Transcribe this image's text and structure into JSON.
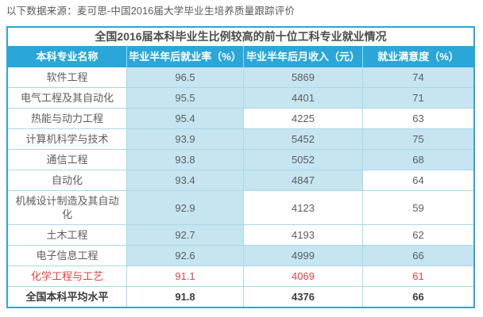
{
  "page": {
    "source_note": "以下数据来源：麦可思-中国2016届大学毕业生培养质量跟踪评价"
  },
  "table": {
    "title": "全国2016届本科毕业生比例较高的前十位工科专业就业情况",
    "columns": [
      "本科专业名称",
      "毕业半年后就业率（%）",
      "毕业半年后月收入（元）",
      "就业满意度（%）"
    ],
    "rows": [
      {
        "name": "软件工程",
        "rate": "96.5",
        "income": "5869",
        "satisfaction": "74",
        "shades": [
          "w",
          "b",
          "b",
          "b"
        ],
        "style": "normal"
      },
      {
        "name": "电气工程及其自动化",
        "rate": "95.5",
        "income": "4401",
        "satisfaction": "71",
        "shades": [
          "w",
          "b",
          "b",
          "b"
        ],
        "style": "normal"
      },
      {
        "name": "热能与动力工程",
        "rate": "95.4",
        "income": "4225",
        "satisfaction": "63",
        "shades": [
          "w",
          "b",
          "w",
          "w"
        ],
        "style": "normal"
      },
      {
        "name": "计算机科学与技术",
        "rate": "93.9",
        "income": "5452",
        "satisfaction": "75",
        "shades": [
          "w",
          "b",
          "b",
          "b"
        ],
        "style": "normal"
      },
      {
        "name": "通信工程",
        "rate": "93.8",
        "income": "5052",
        "satisfaction": "68",
        "shades": [
          "w",
          "b",
          "b",
          "b"
        ],
        "style": "normal"
      },
      {
        "name": "自动化",
        "rate": "93.4",
        "income": "4847",
        "satisfaction": "64",
        "shades": [
          "w",
          "b",
          "b",
          "w"
        ],
        "style": "normal"
      },
      {
        "name": "机械设计制造及其自动化",
        "rate": "92.9",
        "income": "4123",
        "satisfaction": "59",
        "shades": [
          "w",
          "b",
          "w",
          "w"
        ],
        "style": "normal"
      },
      {
        "name": "土木工程",
        "rate": "92.7",
        "income": "4193",
        "satisfaction": "62",
        "shades": [
          "w",
          "b",
          "w",
          "w"
        ],
        "style": "normal"
      },
      {
        "name": "电子信息工程",
        "rate": "92.6",
        "income": "4999",
        "satisfaction": "66",
        "shades": [
          "w",
          "b",
          "b",
          "b"
        ],
        "style": "normal"
      },
      {
        "name": "化学工程与工艺",
        "rate": "91.1",
        "income": "4069",
        "satisfaction": "61",
        "shades": [
          "w",
          "w",
          "w",
          "w"
        ],
        "style": "red"
      },
      {
        "name": "全国本科平均水平",
        "rate": "91.8",
        "income": "4376",
        "satisfaction": "66",
        "shades": [
          "w",
          "w",
          "w",
          "w"
        ],
        "style": "bold"
      }
    ]
  },
  "chart_data": {
    "type": "table",
    "title": "全国2016届本科毕业生比例较高的前十位工科专业就业情况",
    "source": "以下数据来源：麦可思-中国2016届大学毕业生培养质量跟踪评价",
    "columns": [
      "本科专业名称",
      "毕业半年后就业率（%）",
      "毕业半年后月收入（元）",
      "就业满意度（%）"
    ],
    "rows": [
      [
        "软件工程",
        96.5,
        5869,
        74
      ],
      [
        "电气工程及其自动化",
        95.5,
        4401,
        71
      ],
      [
        "热能与动力工程",
        95.4,
        4225,
        63
      ],
      [
        "计算机科学与技术",
        93.9,
        5452,
        75
      ],
      [
        "通信工程",
        93.8,
        5052,
        68
      ],
      [
        "自动化",
        93.4,
        4847,
        64
      ],
      [
        "机械设计制造及其自动化",
        92.9,
        4123,
        59
      ],
      [
        "土木工程",
        92.7,
        4193,
        62
      ],
      [
        "电子信息工程",
        92.6,
        4999,
        66
      ],
      [
        "化学工程与工艺",
        91.1,
        4069,
        61
      ],
      [
        "全国本科平均水平",
        91.8,
        4376,
        66
      ]
    ],
    "annotations": [
      "化学工程与工艺 行为红色强调文字",
      "全国本科平均水平 行为加粗汇总行"
    ]
  },
  "colors": {
    "accent_blue": "#2aa7d8",
    "cell_blue": "#c6e5f1",
    "grid_blue": "#a8d8ea",
    "highlight_red": "#e04343",
    "body_text": "#5d5d5d"
  }
}
